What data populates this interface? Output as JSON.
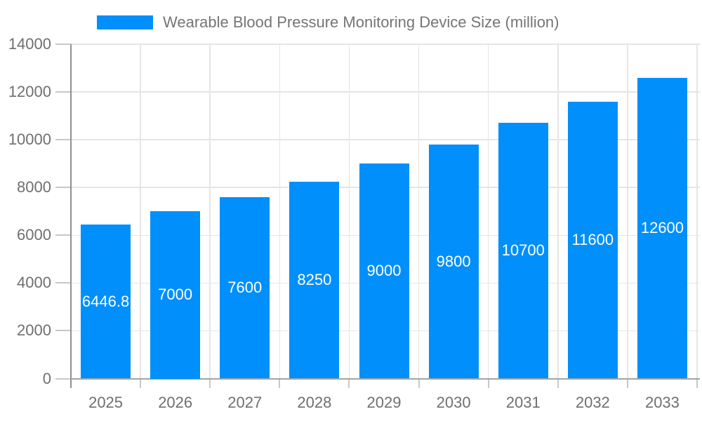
{
  "legend": {
    "label": "Wearable Blood Pressure Monitoring Device Size (million)",
    "swatch_color": "#008FFB"
  },
  "chart_data": {
    "type": "bar",
    "title": "Wearable Blood Pressure Monitoring Device Size (million)",
    "categories": [
      "2025",
      "2026",
      "2027",
      "2028",
      "2029",
      "2030",
      "2031",
      "2032",
      "2033"
    ],
    "values": [
      6446.8,
      7000,
      7600,
      8250,
      9000,
      9800,
      10700,
      11600,
      12600
    ],
    "value_labels": [
      "6446.8",
      "7000",
      "7600",
      "8250",
      "9000",
      "9800",
      "10700",
      "11600",
      "12600"
    ],
    "xlabel": "",
    "ylabel": "",
    "ylim": [
      0,
      14000
    ],
    "yticks": [
      0,
      2000,
      4000,
      6000,
      8000,
      10000,
      12000,
      14000
    ],
    "grid": true,
    "legend_position": "top-left",
    "bar_color": "#008FFB",
    "value_label_color": "#FFFFFF",
    "axis_label_color": "#6F6F6F",
    "value_label_position": "inside-center"
  }
}
